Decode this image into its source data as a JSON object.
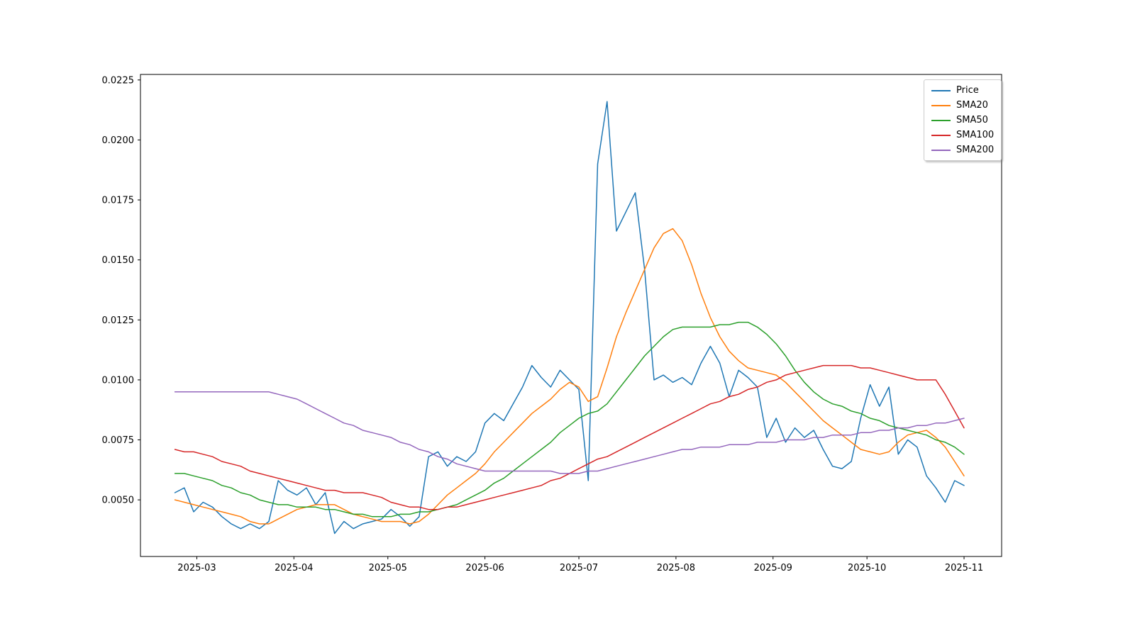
{
  "figure": {
    "background_color": "#ffffff",
    "plot_border_color": "#000000"
  },
  "legend": {
    "position": "upper right",
    "entries": [
      "Price",
      "SMA20",
      "SMA50",
      "SMA100",
      "SMA200"
    ]
  },
  "chart_data": {
    "type": "line",
    "title": "",
    "xlabel": "",
    "ylabel": "",
    "grid": false,
    "legend_position": "upper right",
    "xlim": [
      "2025-02-11",
      "2025-11-13"
    ],
    "ylim": [
      0.00264,
      0.02273
    ],
    "xticks": [
      "2025-03",
      "2025-04",
      "2025-05",
      "2025-06",
      "2025-07",
      "2025-08",
      "2025-09",
      "2025-10",
      "2025-11"
    ],
    "yticks": [
      "0.0050",
      "0.0075",
      "0.0100",
      "0.0125",
      "0.0150",
      "0.0175",
      "0.0200",
      "0.0225"
    ],
    "x": [
      "2025-02-22",
      "2025-02-25",
      "2025-02-28",
      "2025-03-03",
      "2025-03-06",
      "2025-03-09",
      "2025-03-12",
      "2025-03-15",
      "2025-03-18",
      "2025-03-21",
      "2025-03-24",
      "2025-03-27",
      "2025-03-30",
      "2025-04-02",
      "2025-04-05",
      "2025-04-08",
      "2025-04-11",
      "2025-04-14",
      "2025-04-17",
      "2025-04-20",
      "2025-04-23",
      "2025-04-26",
      "2025-04-29",
      "2025-05-02",
      "2025-05-05",
      "2025-05-08",
      "2025-05-11",
      "2025-05-14",
      "2025-05-17",
      "2025-05-20",
      "2025-05-23",
      "2025-05-26",
      "2025-05-29",
      "2025-06-01",
      "2025-06-04",
      "2025-06-07",
      "2025-06-10",
      "2025-06-13",
      "2025-06-16",
      "2025-06-19",
      "2025-06-22",
      "2025-06-25",
      "2025-06-28",
      "2025-07-01",
      "2025-07-04",
      "2025-07-07",
      "2025-07-10",
      "2025-07-13",
      "2025-07-16",
      "2025-07-19",
      "2025-07-22",
      "2025-07-25",
      "2025-07-28",
      "2025-07-31",
      "2025-08-03",
      "2025-08-06",
      "2025-08-09",
      "2025-08-12",
      "2025-08-15",
      "2025-08-18",
      "2025-08-21",
      "2025-08-24",
      "2025-08-27",
      "2025-08-30",
      "2025-09-02",
      "2025-09-05",
      "2025-09-08",
      "2025-09-11",
      "2025-09-14",
      "2025-09-17",
      "2025-09-20",
      "2025-09-23",
      "2025-09-26",
      "2025-09-29",
      "2025-10-02",
      "2025-10-05",
      "2025-10-08",
      "2025-10-11",
      "2025-10-14",
      "2025-10-17",
      "2025-10-20",
      "2025-10-23",
      "2025-10-26",
      "2025-10-29",
      "2025-11-01"
    ],
    "series": [
      {
        "name": "Price",
        "color": "#1f77b4",
        "values": [
          0.0053,
          0.0055,
          0.0045,
          0.0049,
          0.0047,
          0.0043,
          0.004,
          0.0038,
          0.004,
          0.0038,
          0.0041,
          0.0058,
          0.0054,
          0.0052,
          0.0055,
          0.0048,
          0.0053,
          0.0036,
          0.0041,
          0.0038,
          0.004,
          0.0041,
          0.0042,
          0.0046,
          0.0043,
          0.0039,
          0.0043,
          0.0068,
          0.007,
          0.0064,
          0.0068,
          0.0066,
          0.007,
          0.0082,
          0.0086,
          0.0083,
          0.009,
          0.0097,
          0.0106,
          0.0101,
          0.0097,
          0.0104,
          0.01,
          0.0096,
          0.0058,
          0.019,
          0.0216,
          0.0162,
          0.017,
          0.0178,
          0.0146,
          0.01,
          0.0102,
          0.0099,
          0.0101,
          0.0098,
          0.0107,
          0.0114,
          0.0107,
          0.0093,
          0.0104,
          0.0101,
          0.0097,
          0.0076,
          0.0084,
          0.0074,
          0.008,
          0.0076,
          0.0079,
          0.0071,
          0.0064,
          0.0063,
          0.0066,
          0.0084,
          0.0098,
          0.0089,
          0.0097,
          0.0069,
          0.0075,
          0.0072,
          0.006,
          0.0055,
          0.0049,
          0.0058,
          0.0056
        ]
      },
      {
        "name": "SMA20",
        "color": "#ff7f0e",
        "values": [
          0.005,
          0.0049,
          0.0048,
          0.0047,
          0.0046,
          0.0045,
          0.0044,
          0.0043,
          0.0041,
          0.004,
          0.004,
          0.0042,
          0.0044,
          0.0046,
          0.0047,
          0.0048,
          0.0048,
          0.0048,
          0.0046,
          0.0044,
          0.0043,
          0.0042,
          0.0041,
          0.0041,
          0.0041,
          0.004,
          0.0041,
          0.0044,
          0.0048,
          0.0052,
          0.0055,
          0.0058,
          0.0061,
          0.0065,
          0.007,
          0.0074,
          0.0078,
          0.0082,
          0.0086,
          0.0089,
          0.0092,
          0.0096,
          0.0099,
          0.0097,
          0.0091,
          0.0093,
          0.0105,
          0.0118,
          0.0128,
          0.0137,
          0.0146,
          0.0155,
          0.0161,
          0.0163,
          0.0158,
          0.0148,
          0.0136,
          0.0126,
          0.0118,
          0.0112,
          0.0108,
          0.0105,
          0.0104,
          0.0103,
          0.0102,
          0.0099,
          0.0095,
          0.0091,
          0.0087,
          0.0083,
          0.008,
          0.0077,
          0.0074,
          0.0071,
          0.007,
          0.0069,
          0.007,
          0.0074,
          0.0077,
          0.0078,
          0.0079,
          0.0076,
          0.0072,
          0.0066,
          0.006
        ]
      },
      {
        "name": "SMA50",
        "color": "#2ca02c",
        "values": [
          0.0061,
          0.0061,
          0.006,
          0.0059,
          0.0058,
          0.0056,
          0.0055,
          0.0053,
          0.0052,
          0.005,
          0.0049,
          0.0048,
          0.0048,
          0.0047,
          0.0047,
          0.0047,
          0.0046,
          0.0046,
          0.0045,
          0.0044,
          0.0044,
          0.0043,
          0.0043,
          0.0043,
          0.0044,
          0.0044,
          0.0045,
          0.0045,
          0.0046,
          0.0047,
          0.0048,
          0.005,
          0.0052,
          0.0054,
          0.0057,
          0.0059,
          0.0062,
          0.0065,
          0.0068,
          0.0071,
          0.0074,
          0.0078,
          0.0081,
          0.0084,
          0.0086,
          0.0087,
          0.009,
          0.0095,
          0.01,
          0.0105,
          0.011,
          0.0114,
          0.0118,
          0.0121,
          0.0122,
          0.0122,
          0.0122,
          0.0122,
          0.0123,
          0.0123,
          0.0124,
          0.0124,
          0.0122,
          0.0119,
          0.0115,
          0.011,
          0.0104,
          0.0099,
          0.0095,
          0.0092,
          0.009,
          0.0089,
          0.0087,
          0.0086,
          0.0084,
          0.0083,
          0.0081,
          0.008,
          0.0079,
          0.0078,
          0.0077,
          0.0075,
          0.0074,
          0.0072,
          0.0069
        ]
      },
      {
        "name": "SMA100",
        "color": "#d62728",
        "values": [
          0.0071,
          0.007,
          0.007,
          0.0069,
          0.0068,
          0.0066,
          0.0065,
          0.0064,
          0.0062,
          0.0061,
          0.006,
          0.0059,
          0.0058,
          0.0057,
          0.0056,
          0.0055,
          0.0054,
          0.0054,
          0.0053,
          0.0053,
          0.0053,
          0.0052,
          0.0051,
          0.0049,
          0.0048,
          0.0047,
          0.0047,
          0.0046,
          0.0046,
          0.0047,
          0.0047,
          0.0048,
          0.0049,
          0.005,
          0.0051,
          0.0052,
          0.0053,
          0.0054,
          0.0055,
          0.0056,
          0.0058,
          0.0059,
          0.0061,
          0.0063,
          0.0065,
          0.0067,
          0.0068,
          0.007,
          0.0072,
          0.0074,
          0.0076,
          0.0078,
          0.008,
          0.0082,
          0.0084,
          0.0086,
          0.0088,
          0.009,
          0.0091,
          0.0093,
          0.0094,
          0.0096,
          0.0097,
          0.0099,
          0.01,
          0.0102,
          0.0103,
          0.0104,
          0.0105,
          0.0106,
          0.0106,
          0.0106,
          0.0106,
          0.0105,
          0.0105,
          0.0104,
          0.0103,
          0.0102,
          0.0101,
          0.01,
          0.01,
          0.01,
          0.0094,
          0.0087,
          0.008
        ]
      },
      {
        "name": "SMA200",
        "color": "#9467bd",
        "values": [
          0.0095,
          0.0095,
          0.0095,
          0.0095,
          0.0095,
          0.0095,
          0.0095,
          0.0095,
          0.0095,
          0.0095,
          0.0095,
          0.0094,
          0.0093,
          0.0092,
          0.009,
          0.0088,
          0.0086,
          0.0084,
          0.0082,
          0.0081,
          0.0079,
          0.0078,
          0.0077,
          0.0076,
          0.0074,
          0.0073,
          0.0071,
          0.007,
          0.0068,
          0.0067,
          0.0065,
          0.0064,
          0.0063,
          0.0062,
          0.0062,
          0.0062,
          0.0062,
          0.0062,
          0.0062,
          0.0062,
          0.0062,
          0.0061,
          0.0061,
          0.0061,
          0.0062,
          0.0062,
          0.0063,
          0.0064,
          0.0065,
          0.0066,
          0.0067,
          0.0068,
          0.0069,
          0.007,
          0.0071,
          0.0071,
          0.0072,
          0.0072,
          0.0072,
          0.0073,
          0.0073,
          0.0073,
          0.0074,
          0.0074,
          0.0074,
          0.0075,
          0.0075,
          0.0075,
          0.0076,
          0.0076,
          0.0077,
          0.0077,
          0.0077,
          0.0078,
          0.0078,
          0.0079,
          0.0079,
          0.008,
          0.008,
          0.0081,
          0.0081,
          0.0082,
          0.0082,
          0.0083,
          0.0084
        ]
      }
    ]
  }
}
